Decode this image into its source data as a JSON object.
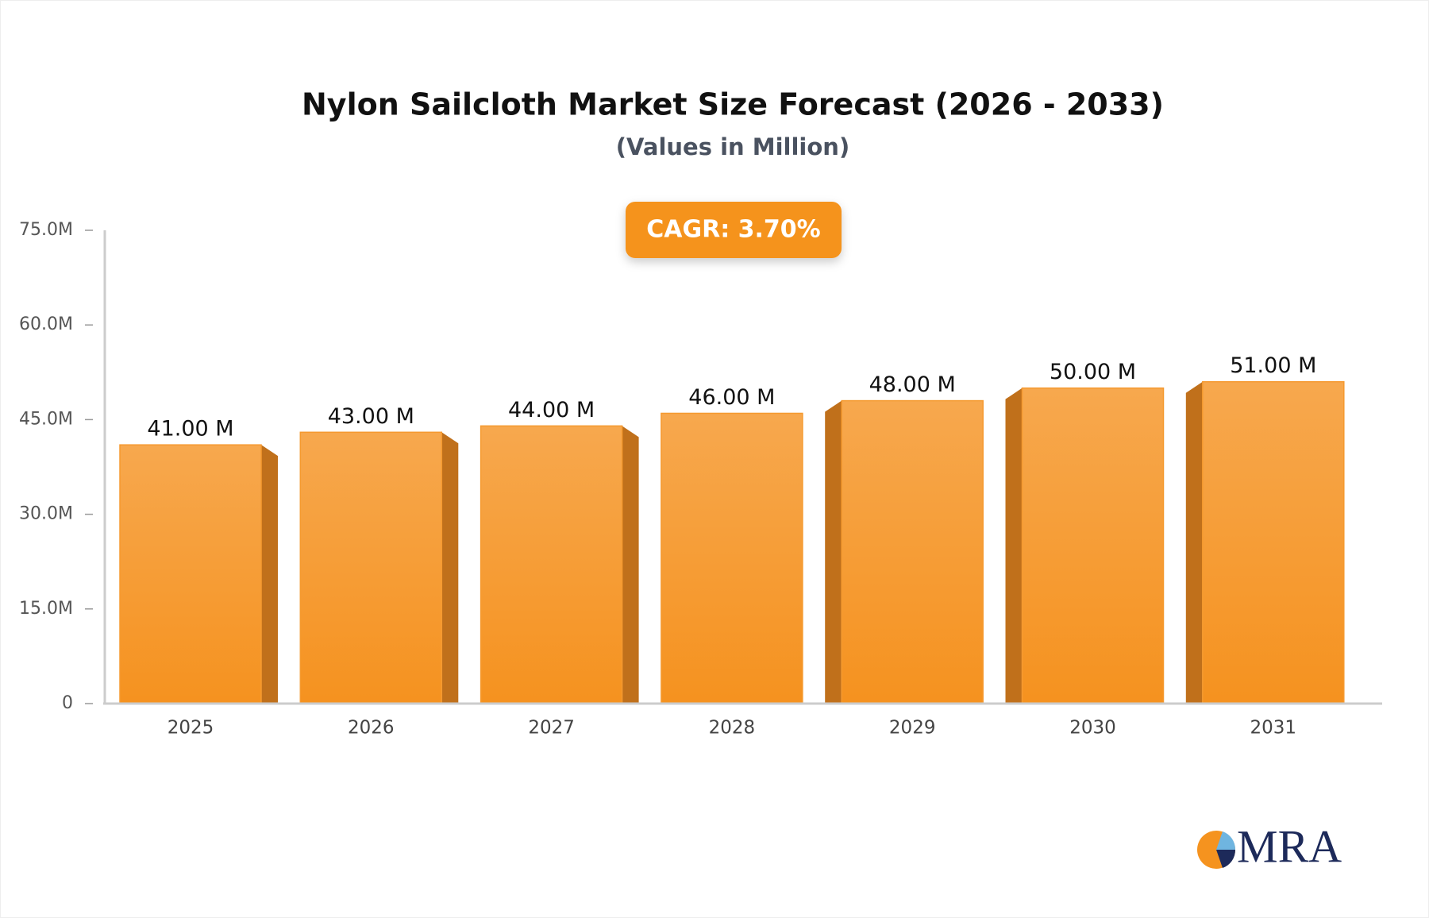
{
  "chart_data": {
    "type": "bar",
    "title": "Nylon Sailcloth Market Size Forecast (2026 - 2033)",
    "subtitle": "(Values in Million)",
    "annotation": "CAGR: 3.70%",
    "logo": "MRA",
    "categories": [
      "2025",
      "2026",
      "2027",
      "2028",
      "2029",
      "2030",
      "2031"
    ],
    "values": [
      41,
      43,
      44,
      46,
      48,
      50,
      51
    ],
    "value_labels": [
      "41.00 M",
      "43.00 M",
      "44.00 M",
      "46.00 M",
      "48.00 M",
      "50.00 M",
      "51.00 M"
    ],
    "color": "#f59a30",
    "ylim": [
      0,
      75
    ],
    "yticks": [
      0,
      {
        "value": 15,
        "label": "15.0M"
      },
      {
        "value": 30,
        "label": "30.0M"
      },
      {
        "value": 45,
        "label": "45.0M"
      },
      {
        "value": 60,
        "label": "60.0M"
      },
      {
        "value": 75,
        "label": "75.0M"
      }
    ],
    "grid": false
  }
}
